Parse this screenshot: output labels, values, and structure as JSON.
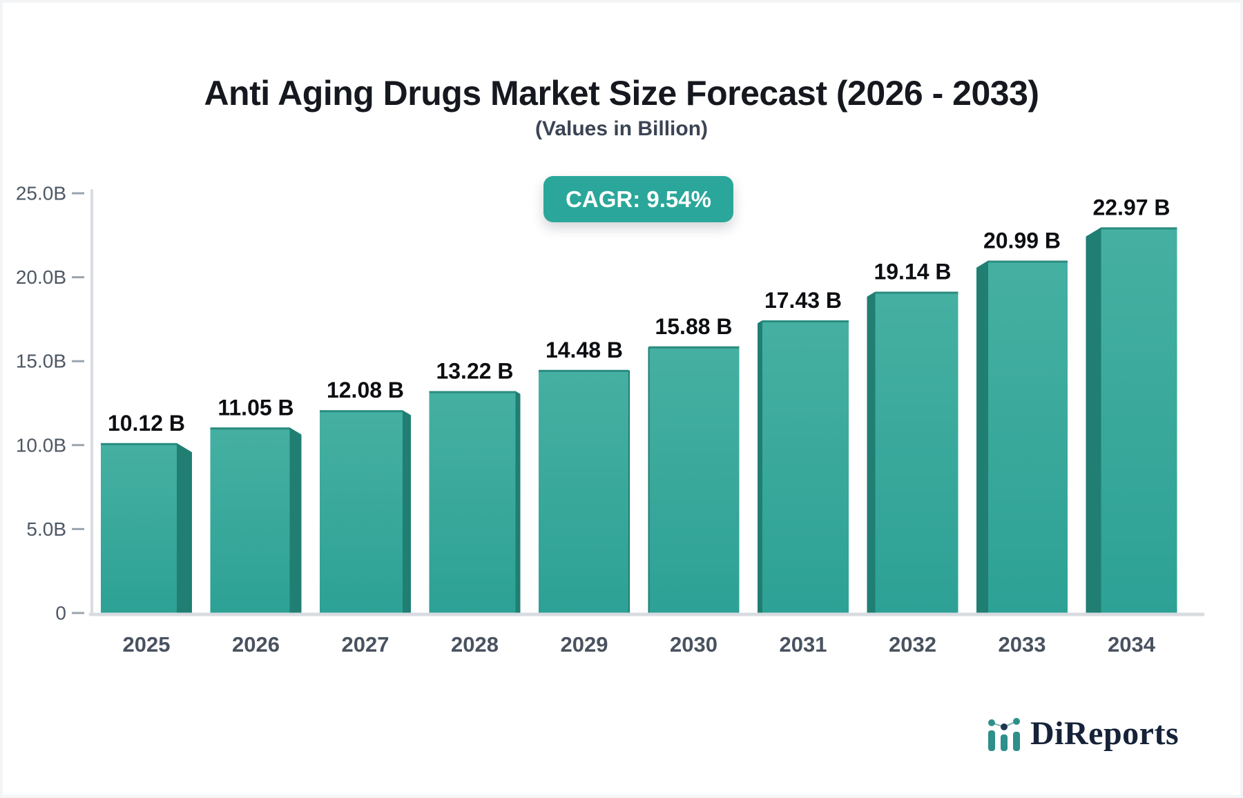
{
  "header": {
    "title": "Anti Aging Drugs Market Size Forecast (2026 - 2033)",
    "subtitle": "(Values in Billion)"
  },
  "annotations": {
    "cagr_label": "CAGR: 9.54%"
  },
  "chart_data": {
    "type": "bar",
    "title": "Anti Aging Drugs Market Size Forecast (2026 - 2033)",
    "subtitle": "(Values in Billion)",
    "categories": [
      "2025",
      "2026",
      "2027",
      "2028",
      "2029",
      "2030",
      "2031",
      "2032",
      "2033",
      "2034"
    ],
    "values": [
      10.12,
      11.05,
      12.08,
      13.22,
      14.48,
      15.88,
      17.43,
      19.14,
      20.99,
      22.97
    ],
    "value_labels": [
      "10.12 B",
      "11.05 B",
      "12.08 B",
      "13.22 B",
      "14.48 B",
      "15.88 B",
      "17.43 B",
      "19.14 B",
      "20.99 B",
      "22.97 B"
    ],
    "value_suffix": " B",
    "xlabel": "",
    "ylabel": "",
    "ylim": [
      0,
      25
    ],
    "grid": false,
    "legend": "none",
    "y_axis_ticks": [
      {
        "label": "25.0B",
        "value": 25
      },
      {
        "label": "20.0B",
        "value": 20
      },
      {
        "label": "15.0B",
        "value": 15
      },
      {
        "label": "10.0B",
        "value": 10
      },
      {
        "label": "5.0B",
        "value": 5
      },
      {
        "label": "0",
        "value": 0
      }
    ]
  },
  "branding": {
    "name": "DiReports",
    "icon": "bar-chart-logo-icon"
  },
  "colors": {
    "accent": "#2aa79a",
    "bar_top": "#45b0a2",
    "bar_bottom": "#2da195",
    "bar_side": "#207e72",
    "bar_top_edge": "#2b8c80",
    "axis_line": "#d8dce0",
    "tick": "#9aa4ae",
    "axis_text": "#4e5764",
    "year_text": "#49525f",
    "value_text": "#0c0e11",
    "title_text": "#15181e",
    "subtitle_text": "#3b4454",
    "brand_navy": "#152238",
    "brand_teal": "#2e8f8b",
    "logo_dot_dark": "#1d3750",
    "logo_line": "#7fb8b4"
  }
}
